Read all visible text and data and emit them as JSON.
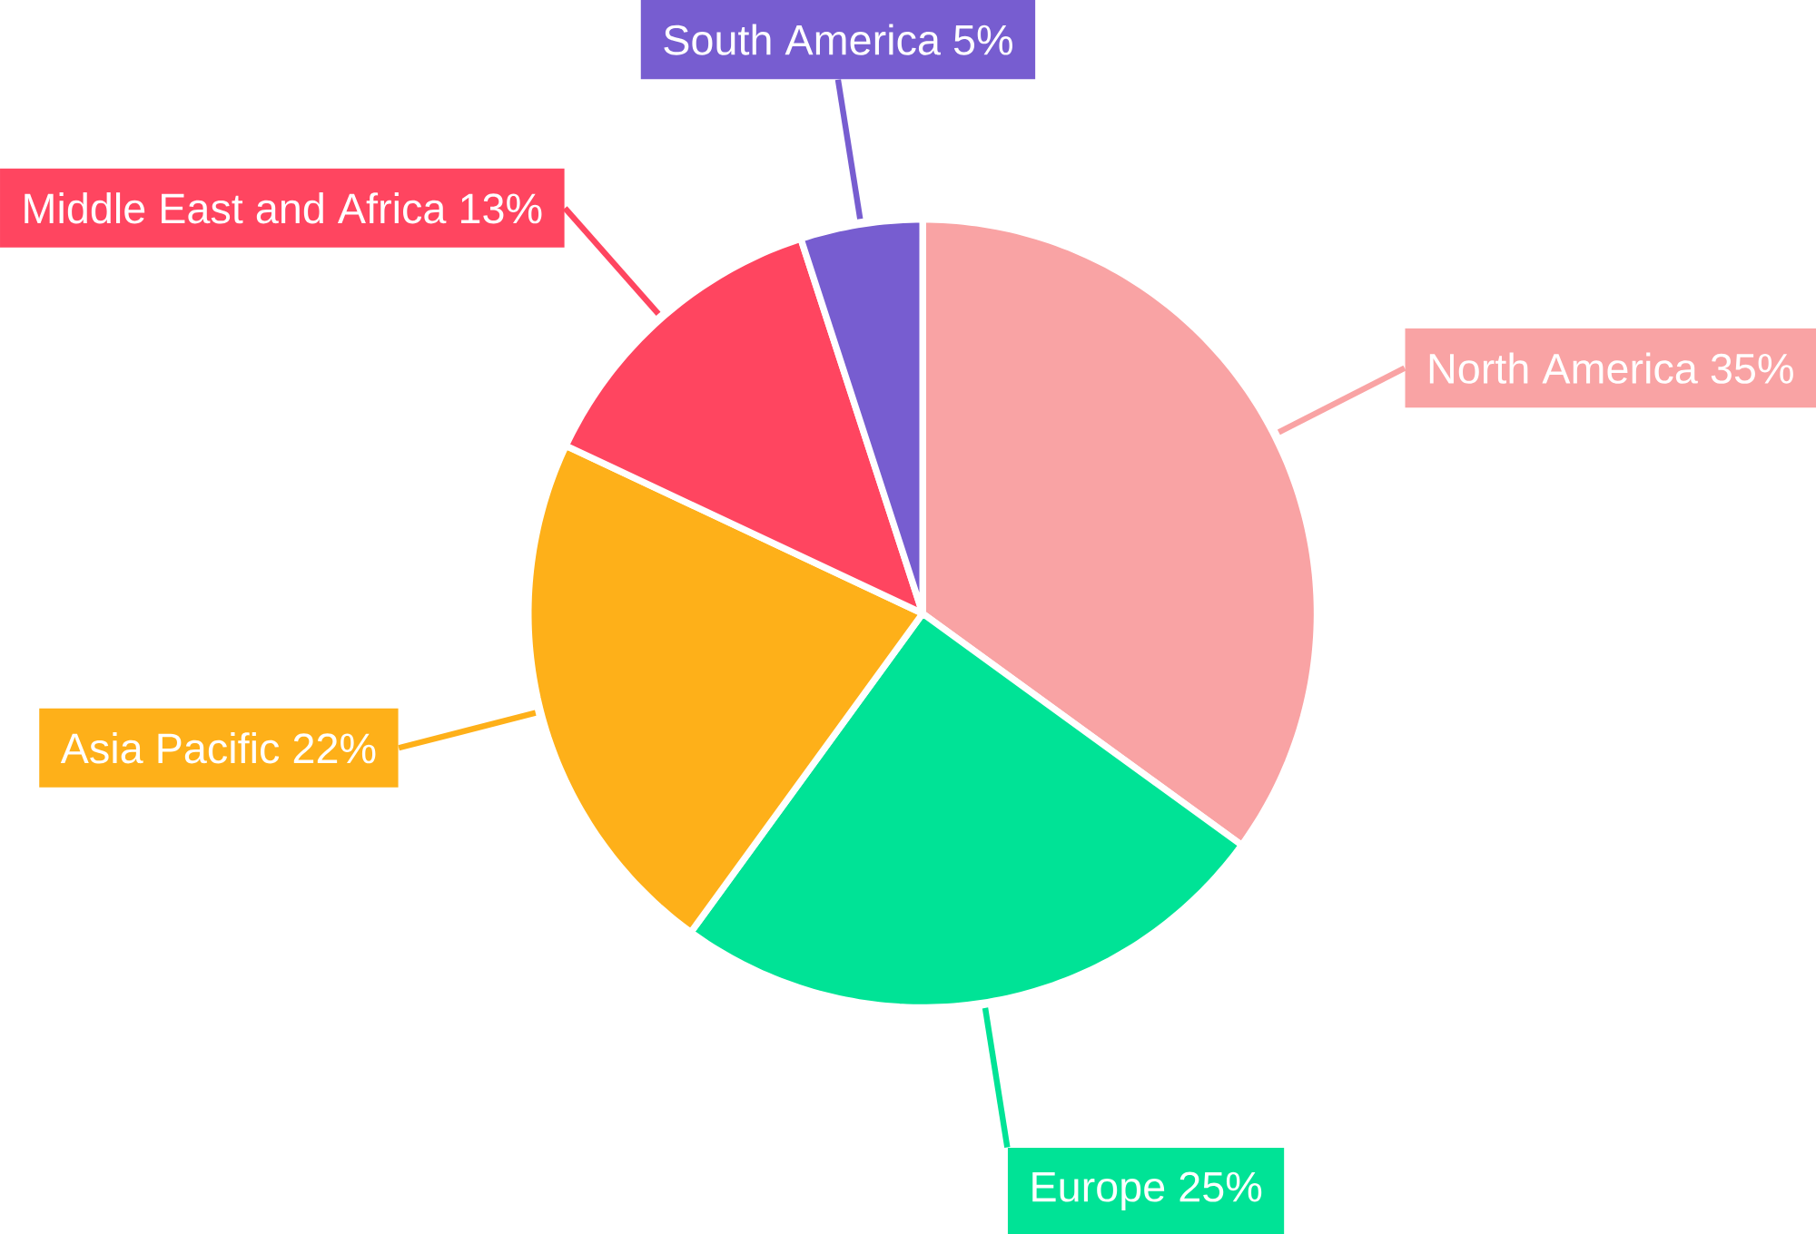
{
  "chart_data": {
    "type": "pie",
    "categories": [
      "North America",
      "Europe",
      "Asia Pacific",
      "Middle East and Africa",
      "South America"
    ],
    "values": [
      35,
      25,
      22,
      13,
      5
    ],
    "colors": [
      "#f9a3a4",
      "#00e396",
      "#feb019",
      "#ff4560",
      "#775dd0"
    ],
    "value_labels": [
      "35%",
      "25%",
      "22%",
      "13%",
      "5%"
    ]
  }
}
